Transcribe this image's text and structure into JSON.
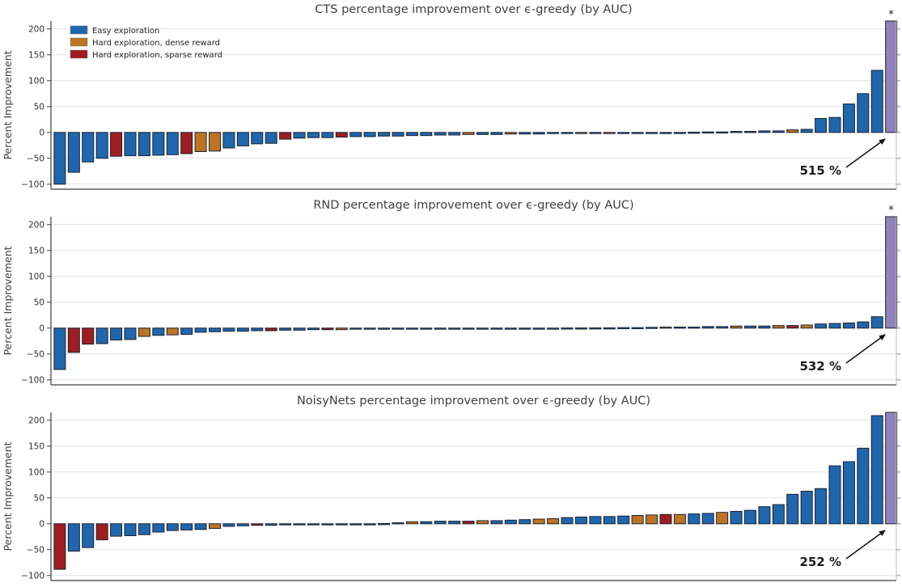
{
  "figure": {
    "ylabel": "Percent Improvement",
    "legend": [
      {
        "label": "Easy exploration",
        "key": "e"
      },
      {
        "label": "Hard exploration, dense reward",
        "key": "d"
      },
      {
        "label": "Hard exploration, sparse reward",
        "key": "s"
      }
    ],
    "colors": {
      "e": "#2066ac",
      "d": "#bd7422",
      "s": "#9f1d1f",
      "p": "#9184bc",
      "edge": "#1a2231",
      "grid": "#e2e2e7",
      "spine": "#3d3d3d",
      "right_spine": "#bdbdc4",
      "tick_label": "#2f2f2f",
      "title": "#3f3f3f",
      "annotation": "#1c1c1c"
    },
    "ytick_labels": [
      "200",
      "150",
      "100",
      "50",
      "0",
      "−50",
      "−100"
    ],
    "ytick_values": [
      200,
      150,
      100,
      50,
      0,
      -50,
      -100
    ],
    "ylim": [
      -110,
      215
    ]
  },
  "chart_data": [
    {
      "type": "bar",
      "title": "CTS percentage improvement over ϵ-greedy (by AUC)",
      "ylabel": "Percent Improvement",
      "ylim": [
        -110,
        215
      ],
      "grid": true,
      "legend_position": "upper-left",
      "show_legend": true,
      "outlier_label": "515 %",
      "outlier_marker": "*",
      "bars": [
        [
          -100,
          "e"
        ],
        [
          -77,
          "e"
        ],
        [
          -57,
          "e"
        ],
        [
          -50,
          "e"
        ],
        [
          -46,
          "s"
        ],
        [
          -45,
          "e"
        ],
        [
          -45,
          "e"
        ],
        [
          -44,
          "e"
        ],
        [
          -43,
          "e"
        ],
        [
          -41,
          "s"
        ],
        [
          -37,
          "d"
        ],
        [
          -36,
          "d"
        ],
        [
          -30,
          "e"
        ],
        [
          -26,
          "e"
        ],
        [
          -22,
          "e"
        ],
        [
          -21,
          "e"
        ],
        [
          -13,
          "s"
        ],
        [
          -11,
          "e"
        ],
        [
          -10,
          "e"
        ],
        [
          -10,
          "e"
        ],
        [
          -9,
          "s"
        ],
        [
          -8,
          "e"
        ],
        [
          -8,
          "e"
        ],
        [
          -7,
          "e"
        ],
        [
          -7,
          "e"
        ],
        [
          -6,
          "e"
        ],
        [
          -6,
          "e"
        ],
        [
          -5,
          "e"
        ],
        [
          -5,
          "e"
        ],
        [
          -4,
          "d"
        ],
        [
          -4,
          "e"
        ],
        [
          -4,
          "e"
        ],
        [
          -3,
          "d"
        ],
        [
          -3,
          "e"
        ],
        [
          -3,
          "e"
        ],
        [
          -2,
          "e"
        ],
        [
          -2,
          "e"
        ],
        [
          -2,
          "d"
        ],
        [
          -2,
          "e"
        ],
        [
          -2,
          "d"
        ],
        [
          -1,
          "e"
        ],
        [
          -1,
          "e"
        ],
        [
          -1,
          "e"
        ],
        [
          -1,
          "e"
        ],
        [
          -0.5,
          "e"
        ],
        [
          0.5,
          "e"
        ],
        [
          1,
          "e"
        ],
        [
          1,
          "e"
        ],
        [
          2,
          "e"
        ],
        [
          2,
          "e"
        ],
        [
          3,
          "e"
        ],
        [
          3,
          "e"
        ],
        [
          5,
          "d"
        ],
        [
          6,
          "e"
        ],
        [
          27,
          "e"
        ],
        [
          29,
          "e"
        ],
        [
          55,
          "e"
        ],
        [
          75,
          "e"
        ],
        [
          120,
          "e"
        ],
        [
          515,
          "p"
        ]
      ]
    },
    {
      "type": "bar",
      "title": "RND percentage improvement over ϵ-greedy (by AUC)",
      "ylabel": "Percent Improvement",
      "ylim": [
        -110,
        215
      ],
      "grid": true,
      "show_legend": false,
      "outlier_label": "532 %",
      "outlier_marker": "*",
      "bars": [
        [
          -80,
          "e"
        ],
        [
          -47,
          "s"
        ],
        [
          -31,
          "s"
        ],
        [
          -30,
          "e"
        ],
        [
          -23,
          "e"
        ],
        [
          -22,
          "e"
        ],
        [
          -16,
          "d"
        ],
        [
          -14,
          "e"
        ],
        [
          -13,
          "d"
        ],
        [
          -12,
          "e"
        ],
        [
          -8,
          "e"
        ],
        [
          -7,
          "e"
        ],
        [
          -6,
          "e"
        ],
        [
          -6,
          "e"
        ],
        [
          -5,
          "e"
        ],
        [
          -5,
          "s"
        ],
        [
          -4,
          "e"
        ],
        [
          -4,
          "e"
        ],
        [
          -3,
          "e"
        ],
        [
          -3,
          "s"
        ],
        [
          -3,
          "d"
        ],
        [
          -2,
          "e"
        ],
        [
          -2,
          "e"
        ],
        [
          -2,
          "e"
        ],
        [
          -2,
          "e"
        ],
        [
          -1,
          "e"
        ],
        [
          -1,
          "e"
        ],
        [
          -1,
          "e"
        ],
        [
          -1,
          "e"
        ],
        [
          -1,
          "e"
        ],
        [
          -1,
          "e"
        ],
        [
          -0.5,
          "e"
        ],
        [
          -0.5,
          "e"
        ],
        [
          -0.5,
          "e"
        ],
        [
          -0.3,
          "e"
        ],
        [
          -0.3,
          "e"
        ],
        [
          0.3,
          "e"
        ],
        [
          0.3,
          "e"
        ],
        [
          0.5,
          "e"
        ],
        [
          0.5,
          "e"
        ],
        [
          1,
          "e"
        ],
        [
          1,
          "e"
        ],
        [
          1.5,
          "e"
        ],
        [
          2,
          "d"
        ],
        [
          2,
          "e"
        ],
        [
          2,
          "e"
        ],
        [
          3,
          "e"
        ],
        [
          3,
          "e"
        ],
        [
          4,
          "d"
        ],
        [
          4,
          "e"
        ],
        [
          4,
          "e"
        ],
        [
          5,
          "d"
        ],
        [
          5,
          "s"
        ],
        [
          6,
          "d"
        ],
        [
          8,
          "e"
        ],
        [
          9,
          "e"
        ],
        [
          10,
          "e"
        ],
        [
          12,
          "e"
        ],
        [
          22,
          "e"
        ],
        [
          532,
          "p"
        ]
      ]
    },
    {
      "type": "bar",
      "title": "NoisyNets percentage improvement over ϵ-greedy (by AUC)",
      "ylabel": "Percent Improvement",
      "ylim": [
        -110,
        215
      ],
      "grid": true,
      "show_legend": false,
      "outlier_label": "252 %",
      "outlier_marker": "",
      "bars": [
        [
          -88,
          "s"
        ],
        [
          -53,
          "e"
        ],
        [
          -46,
          "e"
        ],
        [
          -31,
          "s"
        ],
        [
          -24,
          "e"
        ],
        [
          -23,
          "e"
        ],
        [
          -21,
          "e"
        ],
        [
          -16,
          "e"
        ],
        [
          -13,
          "e"
        ],
        [
          -12,
          "e"
        ],
        [
          -11,
          "e"
        ],
        [
          -9,
          "d"
        ],
        [
          -5,
          "e"
        ],
        [
          -4,
          "e"
        ],
        [
          -3,
          "s"
        ],
        [
          -3,
          "e"
        ],
        [
          -2,
          "e"
        ],
        [
          -2,
          "e"
        ],
        [
          -1,
          "e"
        ],
        [
          -1,
          "e"
        ],
        [
          -1,
          "e"
        ],
        [
          -0.5,
          "e"
        ],
        [
          -0.5,
          "e"
        ],
        [
          0.5,
          "e"
        ],
        [
          2,
          "e"
        ],
        [
          4,
          "d"
        ],
        [
          4,
          "e"
        ],
        [
          5,
          "e"
        ],
        [
          5,
          "e"
        ],
        [
          5,
          "s"
        ],
        [
          6,
          "d"
        ],
        [
          6,
          "e"
        ],
        [
          7,
          "e"
        ],
        [
          8,
          "e"
        ],
        [
          9,
          "d"
        ],
        [
          10,
          "d"
        ],
        [
          12,
          "e"
        ],
        [
          13,
          "e"
        ],
        [
          14,
          "e"
        ],
        [
          14,
          "e"
        ],
        [
          15,
          "e"
        ],
        [
          16,
          "d"
        ],
        [
          17,
          "d"
        ],
        [
          18,
          "s"
        ],
        [
          18,
          "d"
        ],
        [
          19,
          "e"
        ],
        [
          20,
          "e"
        ],
        [
          22,
          "d"
        ],
        [
          24,
          "e"
        ],
        [
          26,
          "e"
        ],
        [
          33,
          "e"
        ],
        [
          37,
          "e"
        ],
        [
          57,
          "e"
        ],
        [
          63,
          "e"
        ],
        [
          68,
          "e"
        ],
        [
          112,
          "e"
        ],
        [
          120,
          "e"
        ],
        [
          146,
          "e"
        ],
        [
          209,
          "e"
        ],
        [
          252,
          "p"
        ]
      ]
    }
  ]
}
